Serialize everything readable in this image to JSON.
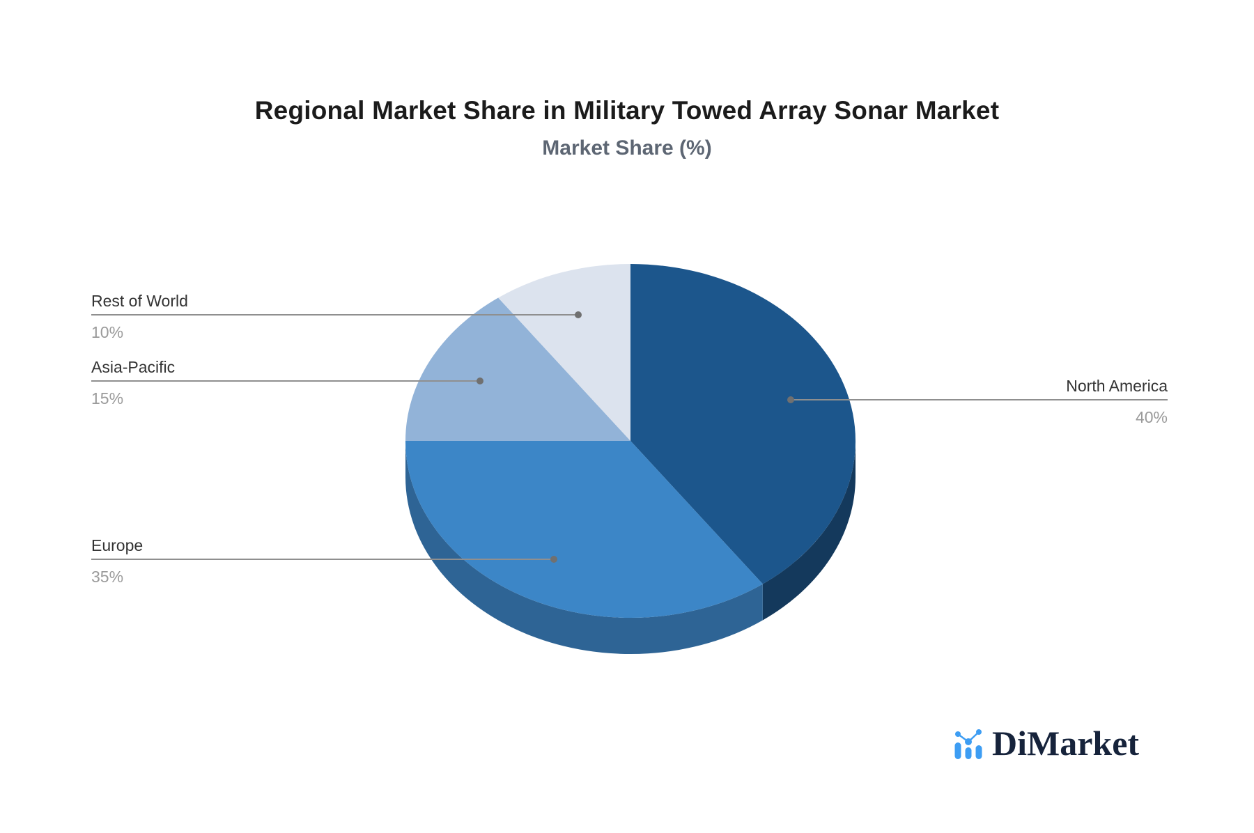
{
  "chart_data": {
    "type": "pie",
    "title": "Regional Market Share in Military Towed Array Sonar Market",
    "subtitle": "Market Share (%)",
    "unit": "%",
    "categories": [
      "North America",
      "Europe",
      "Asia-Pacific",
      "Rest of World"
    ],
    "values": [
      40,
      35,
      15,
      10
    ],
    "value_labels": [
      "40%",
      "35%",
      "15%",
      "10%"
    ],
    "colors": [
      "#1c568c",
      "#3c86c7",
      "#92b3d8",
      "#dce3ee"
    ],
    "depth_colors": [
      "#14395c",
      "#2e6495",
      "#7ba0c9",
      "#c3cedd"
    ],
    "label_sides": [
      "right",
      "left",
      "left",
      "left"
    ],
    "start_angle_deg": 0,
    "direction": "clockwise",
    "style": "3d",
    "legend_position": "none",
    "labeling": "leader-lines",
    "leader_line_color": "#8f8f8f",
    "leader_dot_color": "#707070"
  },
  "brand": {
    "name": "DiMarket",
    "icon": "bar-line-chart-icon",
    "icon_color": "#3d9df3",
    "text_color": "#16233b"
  }
}
